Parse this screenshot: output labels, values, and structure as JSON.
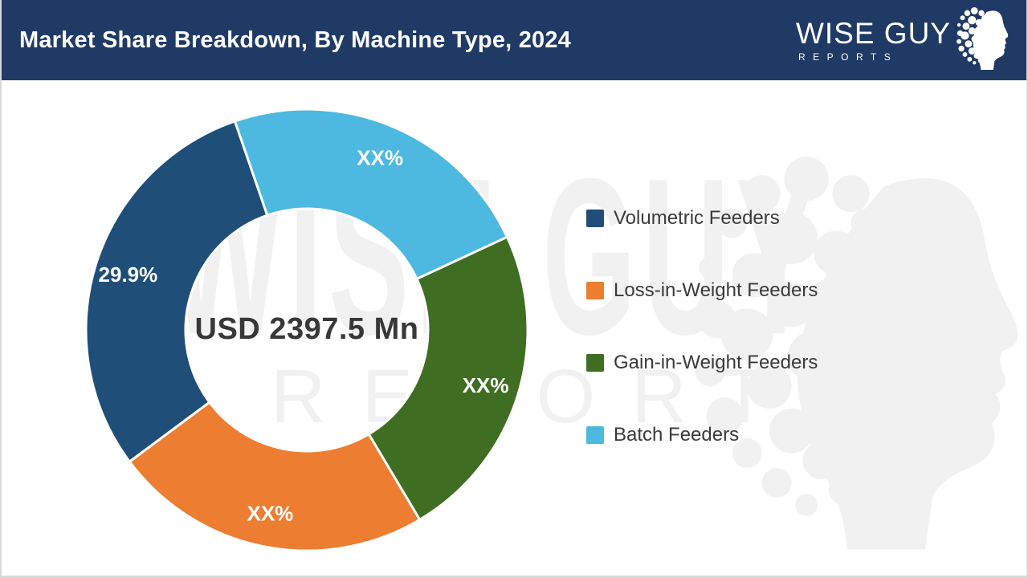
{
  "header": {
    "title": "Market Share Breakdown, By Machine Type, 2024",
    "logo": {
      "wordmark": "WISE GUY",
      "sub": "REPORTS"
    }
  },
  "watermark": {
    "line1": "WISE GUY",
    "line2": "REPORTS"
  },
  "chart_data": {
    "type": "pie",
    "subtype": "donut",
    "title": "Market Share Breakdown, By Machine Type, 2024",
    "center_label": "USD 2397.5 Mn",
    "legend_position": "right",
    "hole_radius_ratio": 0.55,
    "first_segment_start_deg_clockwise_from_north": 341,
    "direction": "counterclockwise",
    "separator_color": "#ffffff",
    "label_color": "#ffffff",
    "segments": [
      {
        "label": "Volumetric Feeders",
        "pct": 29.9,
        "display": "29.9%",
        "color": "#1f4e79"
      },
      {
        "label": "Loss-in-Weight Feeders",
        "pct": 23.37,
        "display": "XX%",
        "color": "#ed7d31"
      },
      {
        "label": "Gain-in-Weight Feeders",
        "pct": 23.37,
        "display": "XX%",
        "color": "#3f6e23"
      },
      {
        "label": "Batch Feeders",
        "pct": 23.36,
        "display": "XX%",
        "color": "#4db8e0"
      }
    ]
  }
}
